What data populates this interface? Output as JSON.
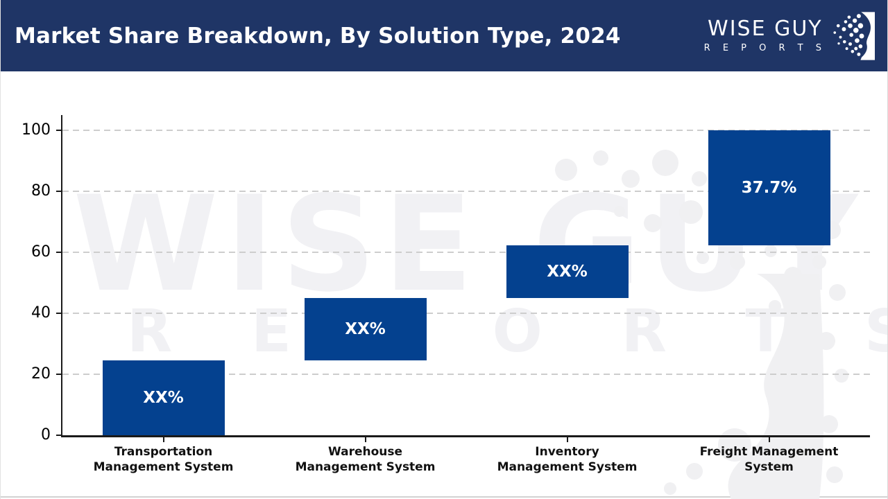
{
  "header": {
    "title": "Market Share Breakdown, By Solution Type, 2024",
    "bg_color": "#1f3566",
    "text_color": "#ffffff",
    "logo": {
      "wordmark": "WISE GUY",
      "subtitle": "R E P O R T S"
    }
  },
  "watermark": {
    "wordmark": "WISE GUY",
    "subtitle": "R E P O R T S",
    "color": "#f1f1f4"
  },
  "chart_data": {
    "type": "bar",
    "subtype": "waterfall",
    "title": "Market Share Breakdown, By Solution Type, 2024",
    "categories": [
      [
        "Transportation",
        "Management System"
      ],
      [
        "Warehouse",
        "Management System"
      ],
      [
        "Inventory",
        "Management System"
      ],
      [
        "Freight Management",
        "System"
      ]
    ],
    "segments": [
      {
        "label": "XX%",
        "start": 0,
        "end": 24.6
      },
      {
        "label": "XX%",
        "start": 24.6,
        "end": 44.9
      },
      {
        "label": "XX%",
        "start": 44.9,
        "end": 62.3
      },
      {
        "label": "37.7%",
        "start": 62.3,
        "end": 100
      }
    ],
    "yticks": [
      0,
      20,
      40,
      60,
      80,
      100
    ],
    "ylim": [
      0,
      105
    ],
    "grid": "horizontal-dashed",
    "legend": "none",
    "bar_color": "#04418f",
    "bar_label_color": "#ffffff",
    "axis_color": "#1a1a1a",
    "grid_color": "#cdcdcd"
  }
}
